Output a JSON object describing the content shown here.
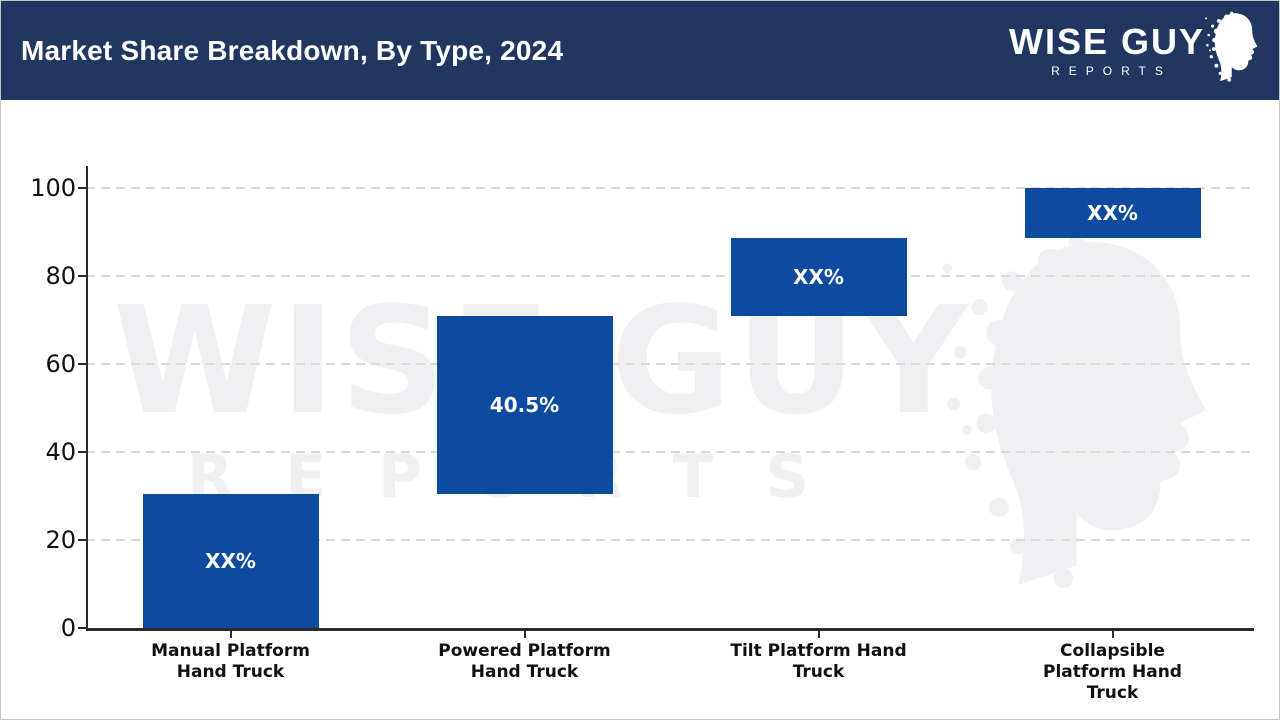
{
  "header": {
    "title": "Market Share Breakdown, By Type, 2024",
    "logo": {
      "brand_line1": "WISE GUY",
      "brand_line2": "REPORTS"
    }
  },
  "watermark": {
    "line1": "WISE GUY",
    "line2": "REPORTS"
  },
  "chart_data": {
    "type": "bar",
    "subtype": "waterfall",
    "title": "Market Share Breakdown, By Type, 2024",
    "categories": [
      "Manual Platform Hand Truck",
      "Powered Platform Hand Truck",
      "Tilt Platform Hand Truck",
      "Collapsible Platform Hand Truck"
    ],
    "category_label_lines": [
      [
        "Manual Platform",
        "Hand Truck"
      ],
      [
        "Powered Platform",
        "Hand Truck"
      ],
      [
        "Tilt Platform Hand",
        "Truck"
      ],
      [
        "Collapsible",
        "Platform Hand",
        "Truck"
      ]
    ],
    "segments": [
      {
        "category": "Manual Platform Hand Truck",
        "label": "XX%",
        "start": 0,
        "end": 30.4
      },
      {
        "category": "Powered Platform Hand Truck",
        "label": "40.5%",
        "start": 30.4,
        "end": 70.9
      },
      {
        "category": "Tilt Platform Hand Truck",
        "label": "XX%",
        "start": 70.9,
        "end": 88.6
      },
      {
        "category": "Collapsible Platform Hand Truck",
        "label": "XX%",
        "start": 88.6,
        "end": 100
      }
    ],
    "yticks": [
      0,
      20,
      40,
      60,
      80,
      100
    ],
    "ylim": [
      0,
      105
    ],
    "xlabel": "",
    "ylabel": "",
    "grid": "horizontal-dashed",
    "legend": "none"
  },
  "colors": {
    "header_bg": "#213660",
    "bar_fill": "#0d4ba0",
    "bar_label": "#ffffff",
    "axis": "#2b2b2b",
    "grid": "#d9d9d9",
    "tick_text": "#111111",
    "watermark": "#f0f0f2",
    "page_border": "#c6c6c6"
  }
}
